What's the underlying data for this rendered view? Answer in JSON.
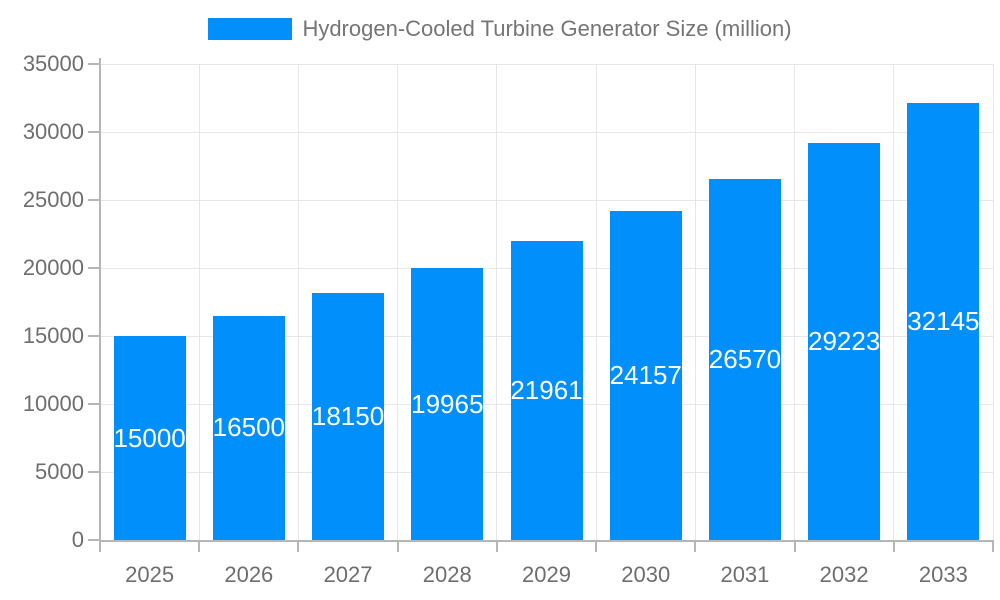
{
  "legend": {
    "label": "Hydrogen-Cooled Turbine Generator Size (million)",
    "marker_color": "#008FFB"
  },
  "chart_data": {
    "type": "bar",
    "title": "",
    "xlabel": "",
    "ylabel": "",
    "categories": [
      "2025",
      "2026",
      "2027",
      "2028",
      "2029",
      "2030",
      "2031",
      "2032",
      "2033"
    ],
    "series": [
      {
        "name": "Hydrogen-Cooled Turbine Generator Size (million)",
        "values": [
          15000,
          16500,
          18150,
          19965,
          21961,
          24157,
          26570,
          29223,
          32145
        ]
      }
    ],
    "value_labels_shown": true,
    "ylim": [
      0,
      35000
    ],
    "yticks": [
      0,
      5000,
      10000,
      15000,
      20000,
      25000,
      30000,
      35000
    ],
    "grid": true,
    "legend_position": "top",
    "colors": {
      "bar": "#008FFB",
      "value_label": "#ffffff",
      "axis_text": "#6e6e6e",
      "legend_text": "#757575",
      "gridline": "#e7e7e7",
      "axis_line": "#b6b6b6"
    }
  }
}
